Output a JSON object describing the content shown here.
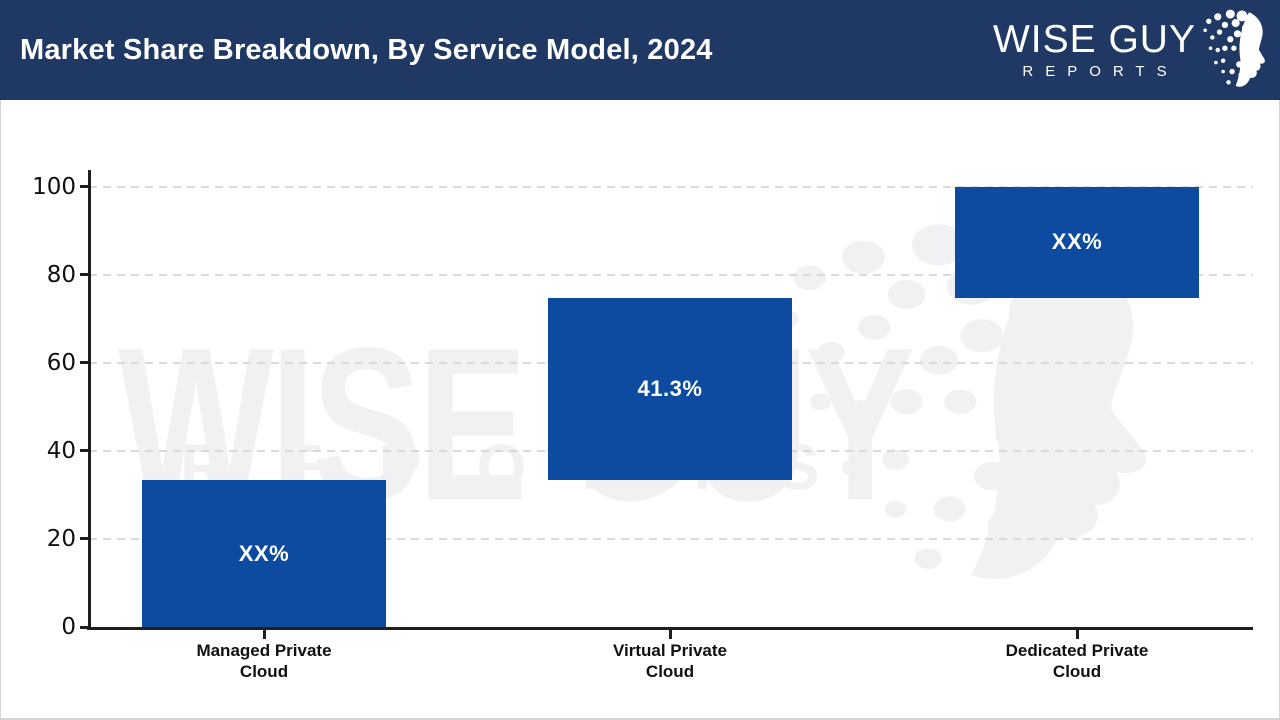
{
  "header": {
    "title": "Market Share Breakdown, By Service Model, 2024",
    "logo": {
      "line1": "WISE GUY",
      "line2": "REPORTS"
    }
  },
  "watermark": {
    "line1": "WISE GUY",
    "line2": "REPORTS"
  },
  "colors": {
    "header_bg": "#1f3864",
    "bar_blue": "#0c4b9f",
    "grid_gray": "#d9d9d9",
    "watermark_gray": "#f1f1f4"
  },
  "chart_data": {
    "type": "bar",
    "subtype": "floating-segment-breakdown",
    "title": "Market Share Breakdown, By Service Model, 2024",
    "categories": [
      "Managed Private Cloud",
      "Virtual Private Cloud",
      "Dedicated Private Cloud"
    ],
    "bars": [
      {
        "category": "Managed Private Cloud",
        "from": 0,
        "to": 33.3,
        "share": 33.3,
        "label": "XX%"
      },
      {
        "category": "Virtual Private Cloud",
        "from": 33.3,
        "to": 74.6,
        "share": 41.3,
        "label": "41.3%"
      },
      {
        "category": "Dedicated Private Cloud",
        "from": 74.6,
        "to": 100,
        "share": 25.4,
        "label": "XX%"
      }
    ],
    "yticks": [
      0,
      20,
      40,
      60,
      80,
      100
    ],
    "ylim": [
      0,
      104
    ],
    "xlabel": "",
    "ylabel": "",
    "grid": "horizontal-dashed",
    "legend": "none"
  }
}
